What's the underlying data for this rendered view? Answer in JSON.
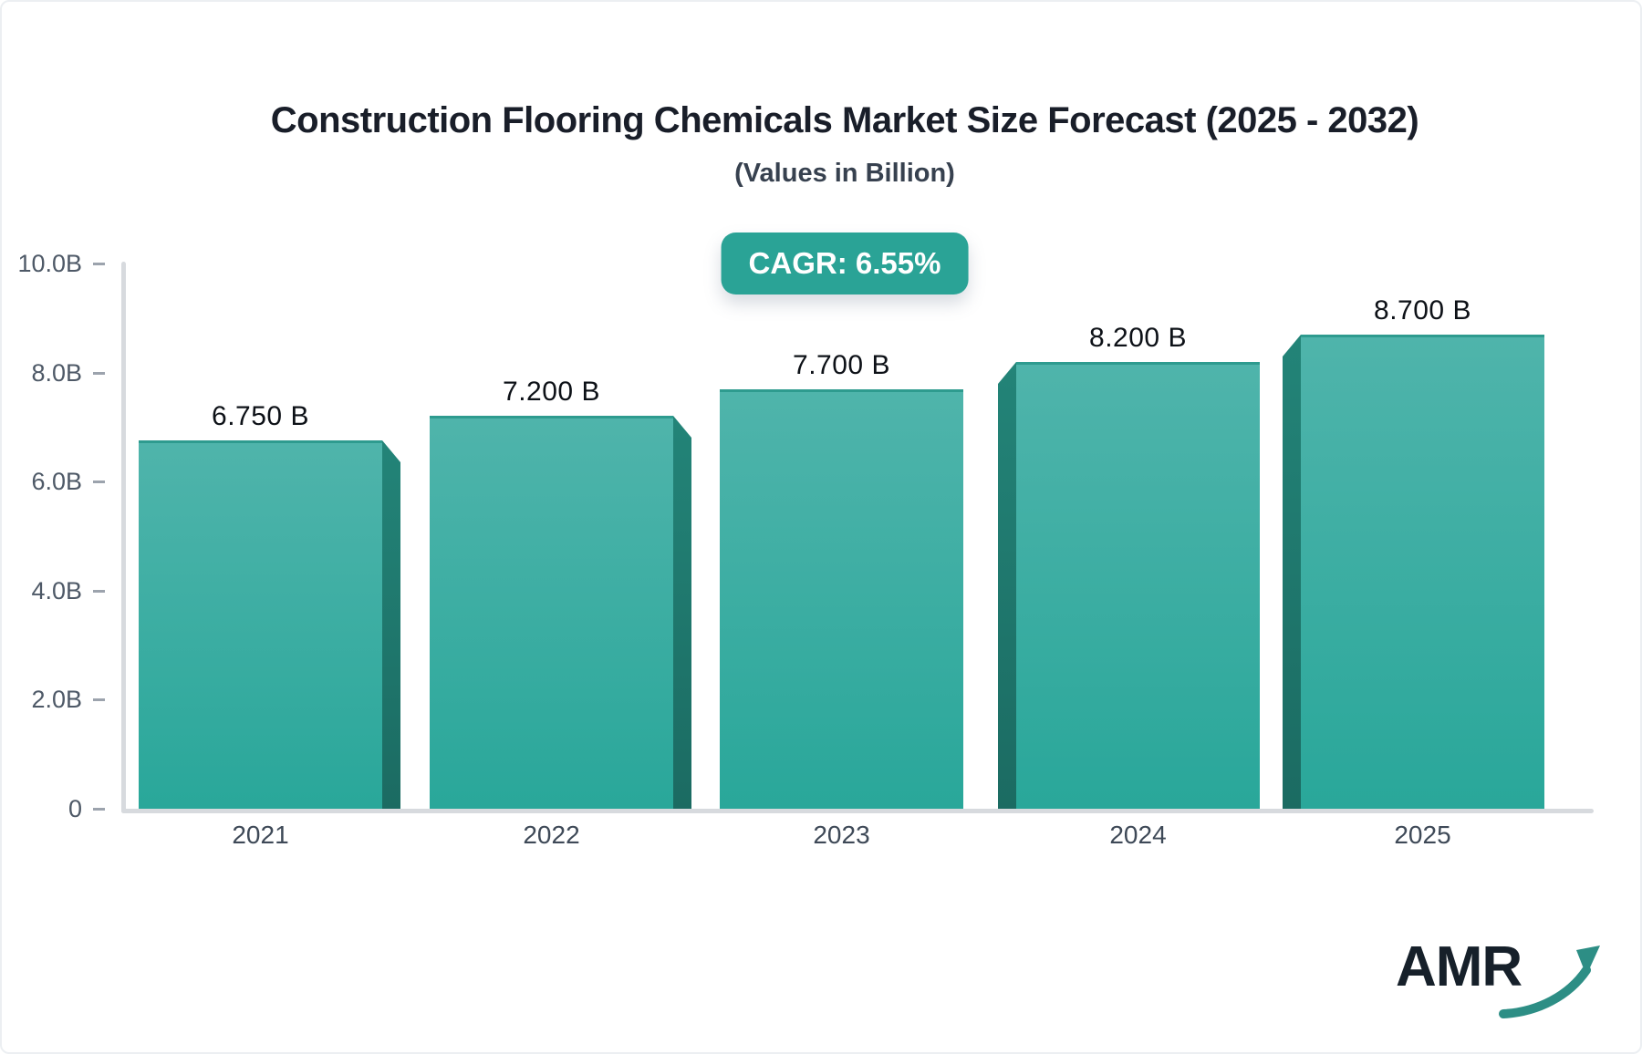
{
  "header": {
    "title": "Construction Flooring Chemicals Market Size Forecast (2025 - 2032)",
    "subtitle": "(Values in Billion)",
    "cagr_badge": "CAGR: 6.55%"
  },
  "chart_data": {
    "type": "bar",
    "title": "Construction Flooring Chemicals Market Size Forecast (2025 - 2032)",
    "subtitle": "(Values in Billion)",
    "annotation": "CAGR: 6.55%",
    "categories": [
      "2021",
      "2022",
      "2023",
      "2024",
      "2025"
    ],
    "values": [
      6.75,
      7.2,
      7.7,
      8.2,
      8.7
    ],
    "value_labels": [
      "6.750 B",
      "7.200 B",
      "7.700 B",
      "8.200 B",
      "8.700 B"
    ],
    "unit": "Billion",
    "ylim": [
      0,
      10
    ],
    "yticks": [
      {
        "value": 0,
        "label": "0"
      },
      {
        "value": 2,
        "label": "2.0B"
      },
      {
        "value": 4,
        "label": "4.0B"
      },
      {
        "value": 6,
        "label": "6.0B"
      },
      {
        "value": 8,
        "label": "8.0B"
      },
      {
        "value": 10,
        "label": "10.0B"
      }
    ],
    "grid": false,
    "legend": false,
    "bar_style": {
      "fill_top": "#4FB4AB",
      "fill_bottom": "#29A79A",
      "top_edge": "#2E9B8F",
      "side_top": "#238478",
      "side_bottom": "#1B6B62",
      "side_direction": [
        "right",
        "right",
        "none",
        "left",
        "left"
      ]
    }
  },
  "branding": {
    "logo_text": "AMR",
    "arrow_icon": "growth-arrow-icon"
  },
  "colors": {
    "accent_teal": "#2AA396",
    "badge_text": "#FFFFFF",
    "axis_line": "#D7DADE",
    "tick": "#9CA3AD",
    "y_label": "#4E5967",
    "x_label": "#3E4957",
    "value_label": "#0D1117",
    "title": "#191E29",
    "subtitle": "#37414F",
    "logo_text": "#16202A",
    "logo_arrow": "#2D8E85"
  }
}
